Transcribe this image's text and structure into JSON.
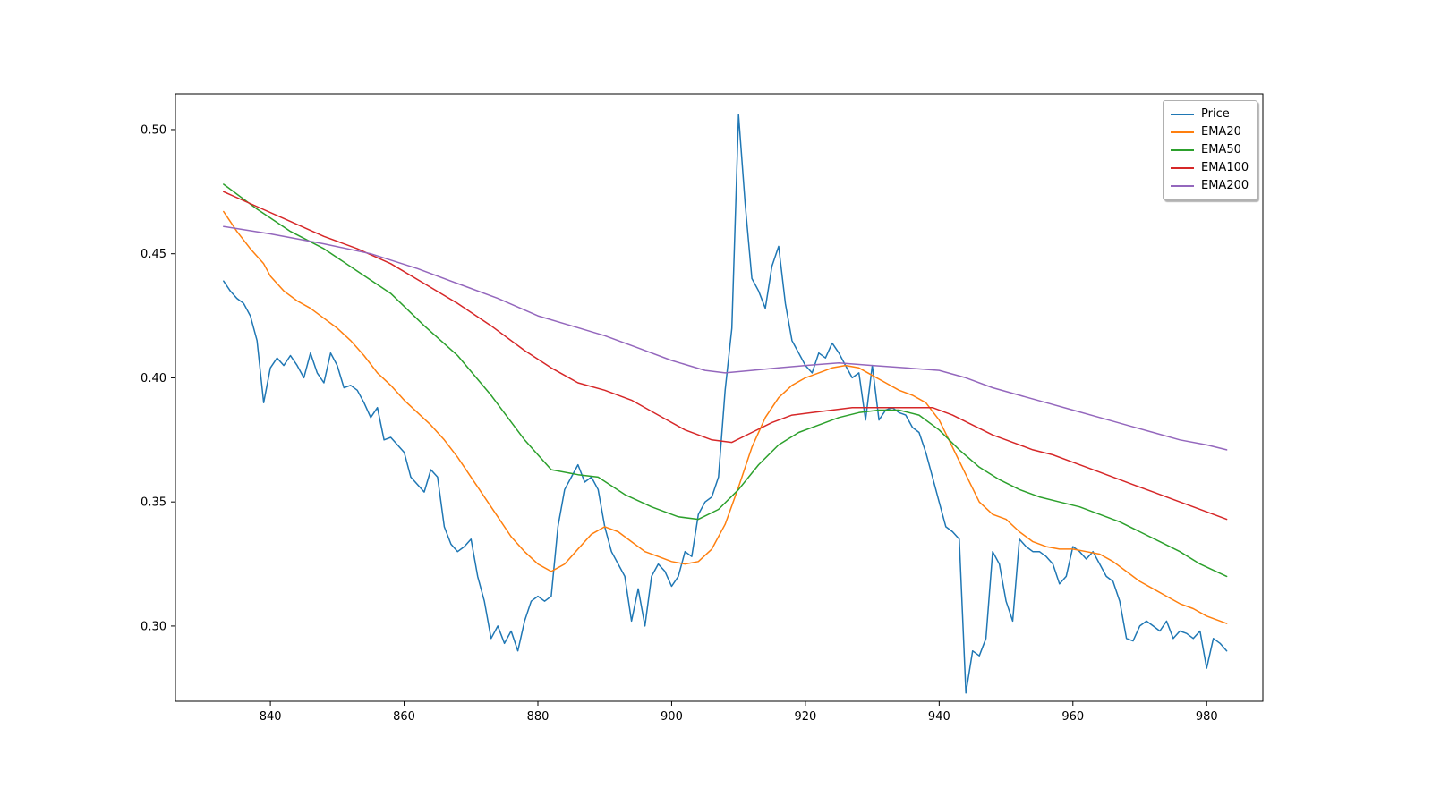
{
  "figure": {
    "background": "#ffffff"
  },
  "chart_data": {
    "type": "line",
    "title": "",
    "xlabel": "",
    "ylabel": "",
    "grid": false,
    "legend_position": "upper right",
    "xlim": [
      825.8,
      988.4
    ],
    "ylim": [
      0.2697,
      0.5144
    ],
    "xticks": [
      840,
      860,
      880,
      900,
      920,
      940,
      960,
      980
    ],
    "xtick_labels": [
      "840",
      "860",
      "880",
      "900",
      "920",
      "940",
      "960",
      "980"
    ],
    "yticks": [
      0.3,
      0.35,
      0.4,
      0.45,
      0.5
    ],
    "ytick_labels": [
      "0.30",
      "0.35",
      "0.40",
      "0.45",
      "0.50"
    ],
    "series": [
      {
        "name": "Price",
        "color": "#1f77b4",
        "x_start": 833,
        "x_step": 1,
        "values": [
          0.439,
          0.435,
          0.432,
          0.43,
          0.425,
          0.415,
          0.39,
          0.404,
          0.408,
          0.405,
          0.409,
          0.405,
          0.4,
          0.41,
          0.402,
          0.398,
          0.41,
          0.405,
          0.396,
          0.397,
          0.395,
          0.39,
          0.384,
          0.388,
          0.375,
          0.376,
          0.373,
          0.37,
          0.36,
          0.357,
          0.354,
          0.363,
          0.36,
          0.34,
          0.333,
          0.33,
          0.332,
          0.335,
          0.32,
          0.31,
          0.295,
          0.3,
          0.293,
          0.298,
          0.29,
          0.302,
          0.31,
          0.312,
          0.31,
          0.312,
          0.34,
          0.355,
          0.36,
          0.365,
          0.358,
          0.36,
          0.355,
          0.34,
          0.33,
          0.325,
          0.32,
          0.302,
          0.315,
          0.3,
          0.32,
          0.325,
          0.322,
          0.316,
          0.32,
          0.33,
          0.328,
          0.345,
          0.35,
          0.352,
          0.36,
          0.395,
          0.42,
          0.506,
          0.47,
          0.44,
          0.435,
          0.428,
          0.445,
          0.453,
          0.43,
          0.415,
          0.41,
          0.405,
          0.402,
          0.41,
          0.408,
          0.414,
          0.41,
          0.405,
          0.4,
          0.402,
          0.383,
          0.405,
          0.383,
          0.387,
          0.388,
          0.386,
          0.385,
          0.38,
          0.378,
          0.37,
          0.36,
          0.35,
          0.34,
          0.338,
          0.335,
          0.273,
          0.29,
          0.288,
          0.295,
          0.33,
          0.325,
          0.31,
          0.302,
          0.335,
          0.332,
          0.33,
          0.33,
          0.328,
          0.325,
          0.317,
          0.32,
          0.332,
          0.33,
          0.327,
          0.33,
          0.325,
          0.32,
          0.318,
          0.31,
          0.295,
          0.294,
          0.3,
          0.302,
          0.3,
          0.298,
          0.302,
          0.295,
          0.298,
          0.297,
          0.295,
          0.298,
          0.283,
          0.295,
          0.293,
          0.29
        ]
      },
      {
        "name": "EMA20",
        "color": "#ff7f0e",
        "points": [
          [
            833,
            0.467
          ],
          [
            835,
            0.459
          ],
          [
            837,
            0.452
          ],
          [
            839,
            0.446
          ],
          [
            840,
            0.441
          ],
          [
            842,
            0.435
          ],
          [
            844,
            0.431
          ],
          [
            846,
            0.428
          ],
          [
            848,
            0.424
          ],
          [
            850,
            0.42
          ],
          [
            852,
            0.415
          ],
          [
            854,
            0.409
          ],
          [
            856,
            0.402
          ],
          [
            858,
            0.397
          ],
          [
            860,
            0.391
          ],
          [
            862,
            0.386
          ],
          [
            864,
            0.381
          ],
          [
            866,
            0.375
          ],
          [
            868,
            0.368
          ],
          [
            870,
            0.36
          ],
          [
            872,
            0.352
          ],
          [
            874,
            0.344
          ],
          [
            876,
            0.336
          ],
          [
            878,
            0.33
          ],
          [
            880,
            0.325
          ],
          [
            882,
            0.322
          ],
          [
            884,
            0.325
          ],
          [
            886,
            0.331
          ],
          [
            888,
            0.337
          ],
          [
            890,
            0.34
          ],
          [
            892,
            0.338
          ],
          [
            894,
            0.334
          ],
          [
            896,
            0.33
          ],
          [
            898,
            0.328
          ],
          [
            900,
            0.326
          ],
          [
            902,
            0.325
          ],
          [
            904,
            0.326
          ],
          [
            906,
            0.331
          ],
          [
            908,
            0.341
          ],
          [
            910,
            0.356
          ],
          [
            912,
            0.372
          ],
          [
            914,
            0.384
          ],
          [
            916,
            0.392
          ],
          [
            918,
            0.397
          ],
          [
            920,
            0.4
          ],
          [
            922,
            0.402
          ],
          [
            924,
            0.404
          ],
          [
            926,
            0.405
          ],
          [
            928,
            0.404
          ],
          [
            930,
            0.401
          ],
          [
            932,
            0.398
          ],
          [
            934,
            0.395
          ],
          [
            936,
            0.393
          ],
          [
            938,
            0.39
          ],
          [
            940,
            0.383
          ],
          [
            942,
            0.372
          ],
          [
            944,
            0.361
          ],
          [
            946,
            0.35
          ],
          [
            948,
            0.345
          ],
          [
            950,
            0.343
          ],
          [
            952,
            0.338
          ],
          [
            954,
            0.334
          ],
          [
            956,
            0.332
          ],
          [
            958,
            0.331
          ],
          [
            960,
            0.331
          ],
          [
            962,
            0.33
          ],
          [
            964,
            0.329
          ],
          [
            966,
            0.326
          ],
          [
            968,
            0.322
          ],
          [
            970,
            0.318
          ],
          [
            972,
            0.315
          ],
          [
            974,
            0.312
          ],
          [
            976,
            0.309
          ],
          [
            978,
            0.307
          ],
          [
            980,
            0.304
          ],
          [
            983,
            0.301
          ]
        ]
      },
      {
        "name": "EMA50",
        "color": "#2ca02c",
        "points": [
          [
            833,
            0.478
          ],
          [
            838,
            0.468
          ],
          [
            843,
            0.459
          ],
          [
            848,
            0.452
          ],
          [
            853,
            0.443
          ],
          [
            858,
            0.434
          ],
          [
            863,
            0.421
          ],
          [
            868,
            0.409
          ],
          [
            873,
            0.393
          ],
          [
            878,
            0.375
          ],
          [
            882,
            0.363
          ],
          [
            886,
            0.361
          ],
          [
            889,
            0.36
          ],
          [
            893,
            0.353
          ],
          [
            897,
            0.348
          ],
          [
            901,
            0.344
          ],
          [
            904,
            0.343
          ],
          [
            907,
            0.347
          ],
          [
            910,
            0.355
          ],
          [
            913,
            0.365
          ],
          [
            916,
            0.373
          ],
          [
            919,
            0.378
          ],
          [
            922,
            0.381
          ],
          [
            925,
            0.384
          ],
          [
            928,
            0.386
          ],
          [
            931,
            0.387
          ],
          [
            934,
            0.387
          ],
          [
            937,
            0.385
          ],
          [
            940,
            0.379
          ],
          [
            943,
            0.371
          ],
          [
            946,
            0.364
          ],
          [
            949,
            0.359
          ],
          [
            952,
            0.355
          ],
          [
            955,
            0.352
          ],
          [
            958,
            0.35
          ],
          [
            961,
            0.348
          ],
          [
            964,
            0.345
          ],
          [
            967,
            0.342
          ],
          [
            970,
            0.338
          ],
          [
            973,
            0.334
          ],
          [
            976,
            0.33
          ],
          [
            979,
            0.325
          ],
          [
            983,
            0.32
          ]
        ]
      },
      {
        "name": "EMA100",
        "color": "#d62728",
        "points": [
          [
            833,
            0.475
          ],
          [
            838,
            0.469
          ],
          [
            843,
            0.463
          ],
          [
            848,
            0.457
          ],
          [
            853,
            0.452
          ],
          [
            858,
            0.446
          ],
          [
            863,
            0.438
          ],
          [
            868,
            0.43
          ],
          [
            873,
            0.421
          ],
          [
            878,
            0.411
          ],
          [
            882,
            0.404
          ],
          [
            886,
            0.398
          ],
          [
            890,
            0.395
          ],
          [
            894,
            0.391
          ],
          [
            898,
            0.385
          ],
          [
            902,
            0.379
          ],
          [
            906,
            0.375
          ],
          [
            909,
            0.374
          ],
          [
            912,
            0.378
          ],
          [
            915,
            0.382
          ],
          [
            918,
            0.385
          ],
          [
            921,
            0.386
          ],
          [
            924,
            0.387
          ],
          [
            927,
            0.388
          ],
          [
            930,
            0.388
          ],
          [
            933,
            0.388
          ],
          [
            936,
            0.388
          ],
          [
            939,
            0.388
          ],
          [
            942,
            0.385
          ],
          [
            945,
            0.381
          ],
          [
            948,
            0.377
          ],
          [
            951,
            0.374
          ],
          [
            954,
            0.371
          ],
          [
            957,
            0.369
          ],
          [
            960,
            0.366
          ],
          [
            963,
            0.363
          ],
          [
            966,
            0.36
          ],
          [
            969,
            0.357
          ],
          [
            972,
            0.354
          ],
          [
            975,
            0.351
          ],
          [
            978,
            0.348
          ],
          [
            983,
            0.343
          ]
        ]
      },
      {
        "name": "EMA200",
        "color": "#9467bd",
        "points": [
          [
            833,
            0.461
          ],
          [
            840,
            0.458
          ],
          [
            848,
            0.454
          ],
          [
            855,
            0.45
          ],
          [
            862,
            0.444
          ],
          [
            868,
            0.438
          ],
          [
            874,
            0.432
          ],
          [
            880,
            0.425
          ],
          [
            885,
            0.421
          ],
          [
            890,
            0.417
          ],
          [
            895,
            0.412
          ],
          [
            900,
            0.407
          ],
          [
            905,
            0.403
          ],
          [
            908,
            0.402
          ],
          [
            912,
            0.403
          ],
          [
            916,
            0.404
          ],
          [
            920,
            0.405
          ],
          [
            925,
            0.406
          ],
          [
            930,
            0.405
          ],
          [
            935,
            0.404
          ],
          [
            940,
            0.403
          ],
          [
            944,
            0.4
          ],
          [
            948,
            0.396
          ],
          [
            952,
            0.393
          ],
          [
            956,
            0.39
          ],
          [
            960,
            0.387
          ],
          [
            964,
            0.384
          ],
          [
            968,
            0.381
          ],
          [
            972,
            0.378
          ],
          [
            976,
            0.375
          ],
          [
            980,
            0.373
          ],
          [
            983,
            0.371
          ]
        ]
      }
    ]
  },
  "legend": {
    "entries": [
      {
        "label": "Price",
        "color": "#1f77b4"
      },
      {
        "label": "EMA20",
        "color": "#ff7f0e"
      },
      {
        "label": "EMA50",
        "color": "#2ca02c"
      },
      {
        "label": "EMA100",
        "color": "#d62728"
      },
      {
        "label": "EMA200",
        "color": "#9467bd"
      }
    ]
  }
}
